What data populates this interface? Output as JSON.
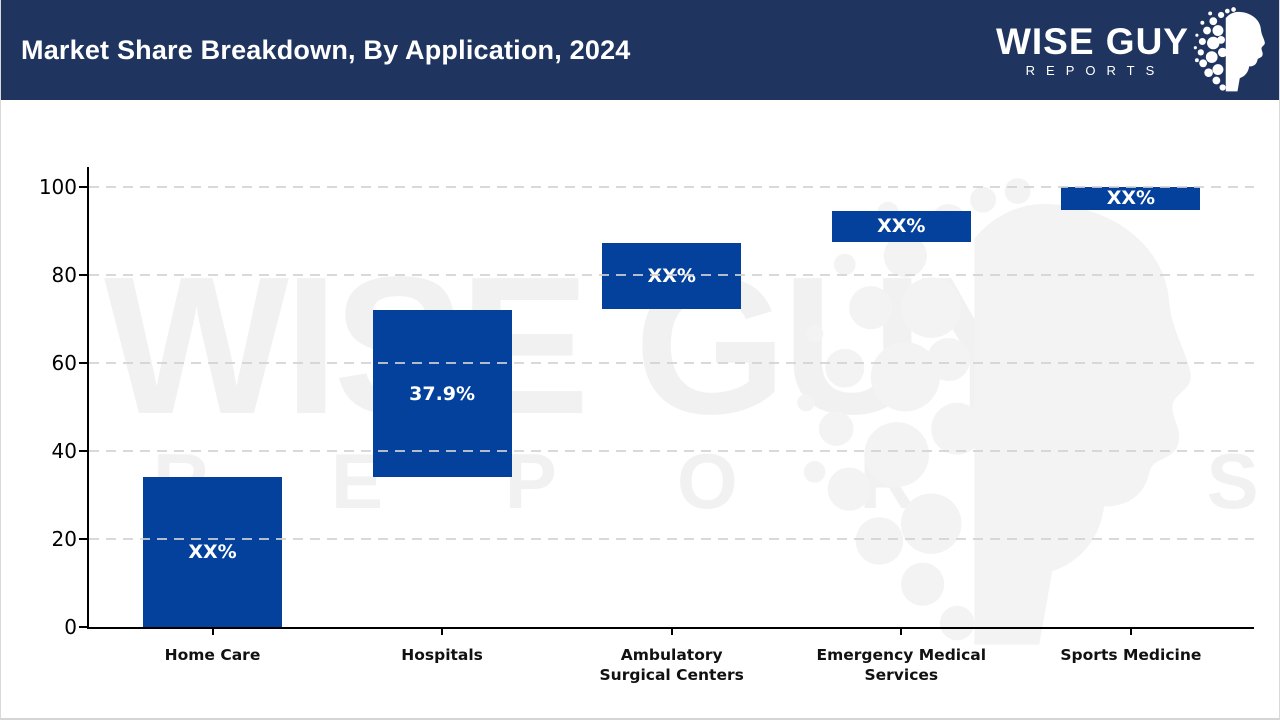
{
  "header": {
    "title": "Market Share Breakdown, By Application, 2024",
    "logo": {
      "line1": "WISE GUY",
      "line2": "REPORTS"
    }
  },
  "watermark": {
    "line1": "WISE GUY",
    "line2": "R E P O R T S"
  },
  "colors": {
    "header_bg": "#1f3560",
    "bar": "#04419d",
    "grid": "#d2d2d2",
    "axis": "#000000",
    "bar_label": "#ffffff",
    "watermark": "#f1f1f1"
  },
  "chart_data": {
    "type": "bar",
    "variant": "floating-waterfall",
    "title": "Market Share Breakdown, By Application, 2024",
    "categories": [
      "Home Care",
      "Hospitals",
      "Ambulatory\nSurgical Centers",
      "Emergency Medical\nServices",
      "Sports Medicine"
    ],
    "series": [
      {
        "name": "Market Share (%)",
        "segments": [
          {
            "category": "Home Care",
            "start": 0,
            "end": 34.1,
            "value_label": "XX%"
          },
          {
            "category": "Hospitals",
            "start": 34.1,
            "end": 72.0,
            "value_label": "37.9%"
          },
          {
            "category": "Ambulatory Surgical Centers",
            "start": 72.3,
            "end": 87.3,
            "value_label": "XX%"
          },
          {
            "category": "Emergency Medical Services",
            "start": 87.5,
            "end": 94.6,
            "value_label": "XX%"
          },
          {
            "category": "Sports Medicine",
            "start": 94.8,
            "end": 100,
            "value_label": "XX%"
          }
        ]
      }
    ],
    "xlabel": "",
    "ylabel": "",
    "ylim": [
      0,
      100
    ],
    "yticks": [
      0,
      20,
      40,
      60,
      80,
      100
    ],
    "grid": "horizontal-dashed",
    "legend": "none"
  }
}
